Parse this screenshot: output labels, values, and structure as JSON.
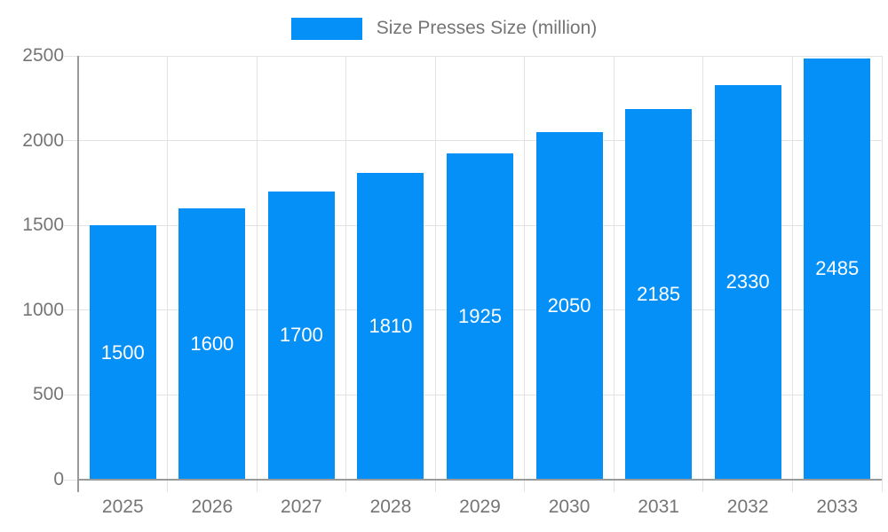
{
  "chart_data": {
    "type": "bar",
    "title": "",
    "series_name": "Size Presses Size (million)",
    "legend_position": "top",
    "categories": [
      "2025",
      "2026",
      "2027",
      "2028",
      "2029",
      "2030",
      "2031",
      "2032",
      "2033"
    ],
    "values": [
      1500,
      1600,
      1700,
      1810,
      1925,
      2050,
      2185,
      2330,
      2485
    ],
    "ylim": [
      0,
      2500
    ],
    "yticks": [
      0,
      500,
      1000,
      1500,
      2000,
      2500
    ],
    "grid": true,
    "colors": {
      "bar": "#0590f8",
      "grid": "#e3e3e3",
      "axis": "#9a9a9a",
      "tick_label": "#757575",
      "bar_label": "#ffffff",
      "background": "#ffffff"
    }
  }
}
